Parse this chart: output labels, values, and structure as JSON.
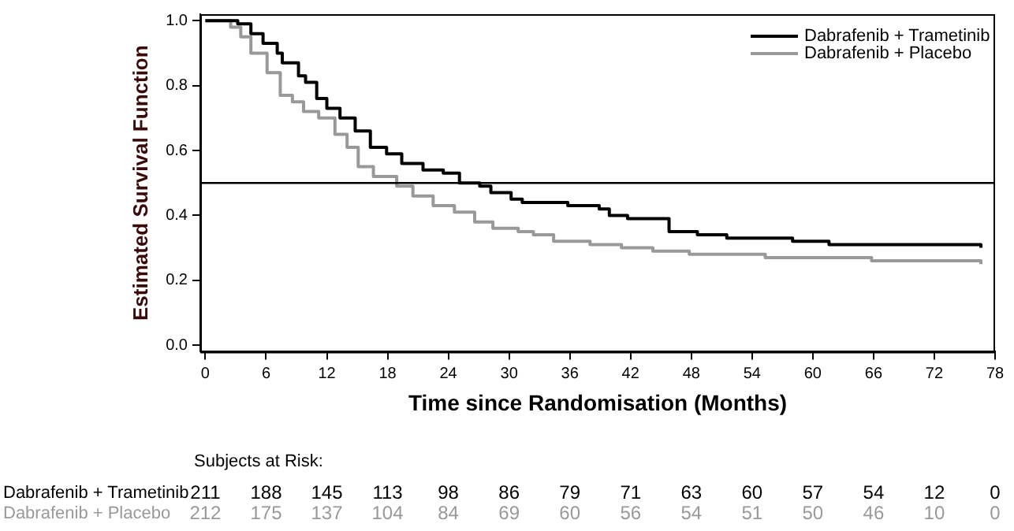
{
  "chart_data": {
    "type": "step",
    "xlabel": "Time since Randomisation (Months)",
    "ylabel": "Estimated Survival Function",
    "xlim": [
      -0.5,
      78
    ],
    "xticks": [
      0,
      6,
      12,
      18,
      24,
      30,
      36,
      42,
      48,
      54,
      60,
      66,
      72,
      78
    ],
    "ylim": [
      -0.02,
      1.02
    ],
    "yticks": [
      {
        "value": 0,
        "label": "0.0"
      },
      {
        "value": 0.2,
        "label": "0.2"
      },
      {
        "value": 0.4,
        "label": "0.4"
      },
      {
        "value": 0.6,
        "label": "0.6"
      },
      {
        "value": 0.8,
        "label": "0.8"
      },
      {
        "value": 1,
        "label": "1.0"
      }
    ],
    "grid": false,
    "legend": "top right",
    "ref_lines": [
      {
        "axis": "y",
        "value": 0.5,
        "color": "#000000"
      }
    ],
    "series": [
      {
        "name": "Dabrafenib + Trametinib",
        "color": "#000000",
        "x": [
          0,
          3.2,
          4.5,
          5.7,
          7.1,
          7.6,
          9.2,
          9.9,
          11.0,
          12.0,
          13.3,
          14.8,
          16.3,
          17.9,
          19.4,
          21.5,
          23.5,
          25.1,
          27.1,
          28.2,
          30.2,
          31.3,
          35.5,
          35.8,
          38.9,
          39.9,
          41.7,
          44.0,
          45.8,
          48.6,
          51.5,
          54.1,
          58.0,
          61.6,
          76.6
        ],
        "values": [
          1.0,
          0.99,
          0.96,
          0.93,
          0.9,
          0.87,
          0.83,
          0.81,
          0.76,
          0.73,
          0.7,
          0.66,
          0.61,
          0.59,
          0.56,
          0.54,
          0.53,
          0.5,
          0.49,
          0.47,
          0.45,
          0.44,
          0.44,
          0.43,
          0.42,
          0.4,
          0.39,
          0.39,
          0.35,
          0.34,
          0.33,
          0.33,
          0.32,
          0.31,
          0.3
        ]
      },
      {
        "name": "Dabrafenib + Placebo",
        "color": "#999999",
        "x": [
          0,
          2.5,
          3.5,
          4.5,
          6.1,
          7.4,
          8.6,
          9.7,
          11.2,
          12.8,
          14.0,
          15.1,
          16.6,
          18.9,
          20.5,
          22.5,
          24.6,
          26.6,
          28.4,
          30.9,
          32.4,
          34.4,
          38.0,
          41.1,
          44.2,
          47.8,
          51.9,
          55.3,
          65.8,
          76.6
        ],
        "values": [
          1.0,
          0.98,
          0.95,
          0.9,
          0.84,
          0.77,
          0.75,
          0.72,
          0.7,
          0.65,
          0.61,
          0.55,
          0.52,
          0.49,
          0.46,
          0.43,
          0.41,
          0.38,
          0.36,
          0.35,
          0.34,
          0.32,
          0.31,
          0.3,
          0.29,
          0.28,
          0.28,
          0.27,
          0.26,
          0.25
        ]
      }
    ],
    "annotations": [
      "Subjects at Risk:",
      "Dabrafenib + Trametinib",
      "211",
      "188",
      "145",
      "113",
      "98",
      "86",
      "79",
      "71",
      "63",
      "60",
      "57",
      "54",
      "12",
      "0",
      "Dabrafenib + Placebo",
      "212",
      "175",
      "137",
      "104",
      "84",
      "69",
      "60",
      "56",
      "54",
      "51",
      "50",
      "46",
      "10",
      "0"
    ]
  }
}
